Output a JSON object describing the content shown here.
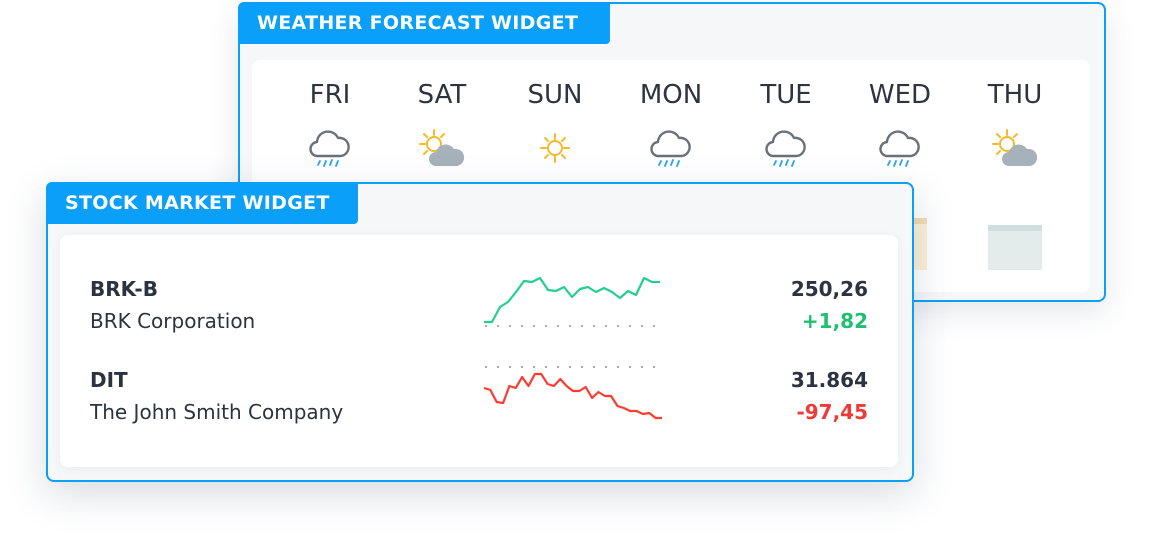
{
  "weather": {
    "title": "WEATHER FORECAST WIDGET",
    "days": [
      {
        "label": "FRI",
        "icon": "rain-icon"
      },
      {
        "label": "SAT",
        "icon": "partly-cloudy-icon"
      },
      {
        "label": "SUN",
        "icon": "sun-icon"
      },
      {
        "label": "MON",
        "icon": "rain-icon"
      },
      {
        "label": "TUE",
        "icon": "rain-icon"
      },
      {
        "label": "WED",
        "icon": "rain-icon"
      },
      {
        "label": "THU",
        "icon": "partly-cloudy-icon"
      }
    ],
    "colors": {
      "bar": "#e3ebeb",
      "bar_warm": "#fdf1d8",
      "rain": "#2aa4f4",
      "sun": "#f7b928",
      "cloud": "#a7b1b9"
    }
  },
  "stock": {
    "title": "STOCK MARKET WIDGET",
    "rows": [
      {
        "symbol": "BRK-B",
        "name": "BRK Corporation",
        "price": "250,26",
        "change": "+1,82",
        "trend": "up"
      },
      {
        "symbol": "DIT",
        "name": "The John Smith Company",
        "price": "31.864",
        "change": "-97,45",
        "trend": "down"
      }
    ],
    "colors": {
      "up": "#1fbf72",
      "down": "#f2393a",
      "up_line": "#23cf8f",
      "down_line": "#ff3b30",
      "accent": "#0a9ff8"
    }
  },
  "chart_data": [
    {
      "type": "line",
      "series": [
        {
          "values": [
            3,
            3,
            18,
            23,
            33,
            44,
            43,
            47,
            35,
            34,
            38,
            28,
            36,
            38,
            33,
            37,
            33,
            27,
            34,
            30,
            47,
            43,
            43
          ]
        }
      ]
    },
    {
      "type": "line",
      "series": [
        {
          "values": [
            31,
            29,
            17,
            16,
            33,
            31,
            42,
            33,
            45,
            45,
            35,
            33,
            40,
            33,
            28,
            28,
            32,
            21,
            27,
            23,
            23,
            13,
            11,
            8,
            8,
            5,
            6,
            1,
            1
          ]
        }
      ]
    }
  ]
}
